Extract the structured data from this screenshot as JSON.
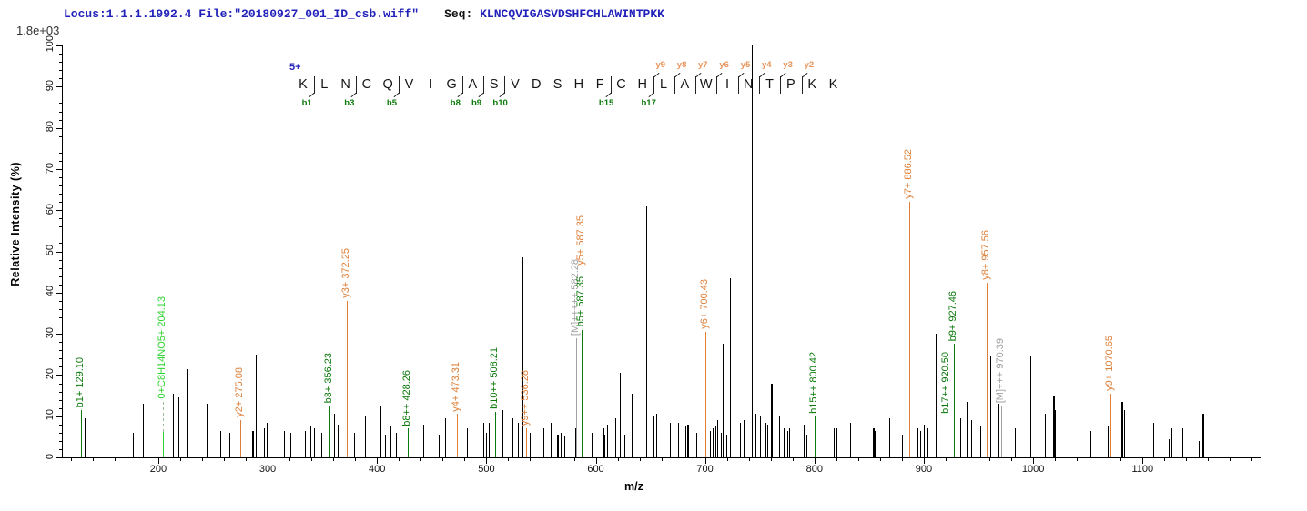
{
  "header": {
    "locus_file": "Locus:1.1.1.1992.4 File:\"20180927_001_ID_csb.wiff\"",
    "seq_label": "Seq:",
    "sequence": "KLNCQVIGASVDSHFCHLAWINTPKK"
  },
  "base_peak_intensity": "1.8e+03",
  "colors": {
    "header_blue": "#2222bb",
    "b_ion_green": "#0a7a0a",
    "y_ion_orange": "#dd7f38",
    "special_green": "#2fd32f",
    "ref_gray": "#a0a0a0",
    "peak_black": "#000000"
  },
  "sequence_overlay": {
    "charge": "5+",
    "residues": [
      "K",
      "L",
      "N",
      "C",
      "Q",
      "V",
      "I",
      "G",
      "A",
      "S",
      "V",
      "D",
      "S",
      "H",
      "F",
      "C",
      "H",
      "L",
      "A",
      "W",
      "I",
      "N",
      "T",
      "P",
      "K",
      "K"
    ],
    "b_ions": [
      {
        "label": "b1",
        "after_index": 0
      },
      {
        "label": "b3",
        "after_index": 2
      },
      {
        "label": "b5",
        "after_index": 4
      },
      {
        "label": "b8",
        "after_index": 7
      },
      {
        "label": "b9",
        "after_index": 8
      },
      {
        "label": "b10",
        "after_index": 9
      },
      {
        "label": "b15",
        "after_index": 14
      },
      {
        "label": "b17",
        "after_index": 16
      }
    ],
    "y_ions": [
      {
        "label": "y9",
        "after_index": 16
      },
      {
        "label": "y8",
        "after_index": 17
      },
      {
        "label": "y7",
        "after_index": 18
      },
      {
        "label": "y6",
        "after_index": 19
      },
      {
        "label": "y5",
        "after_index": 20
      },
      {
        "label": "y4",
        "after_index": 21
      },
      {
        "label": "y3",
        "after_index": 22
      },
      {
        "label": "y2",
        "after_index": 23
      }
    ]
  },
  "axes": {
    "x_label": "m/z",
    "y_label": "Relative  Intensity (%)",
    "x_ticks": [
      200,
      300,
      400,
      500,
      600,
      700,
      800,
      900,
      1000,
      1100
    ],
    "x_minor_step": 20,
    "x_minor_range": [
      120,
      1200
    ],
    "y_ticks": [
      0,
      10,
      20,
      30,
      40,
      50,
      60,
      70,
      80,
      90,
      100
    ],
    "y_minor_step": 2
  },
  "chart_data": {
    "type": "bar",
    "subtype": "centroid-ms2-spectrum",
    "title": "",
    "xlabel": "m/z",
    "ylabel": "Relative Intensity (%)",
    "xlim": [
      107,
      1208
    ],
    "ylim": [
      0,
      100
    ],
    "grid": false,
    "base_peak_mz": 743,
    "base_peak_absolute_intensity": "1.8e+03",
    "peaks": [
      {
        "mz": 129.1,
        "i": 11.5,
        "t": "b",
        "label": "b1+ 129.10"
      },
      {
        "mz": 133,
        "i": 9.5
      },
      {
        "mz": 143,
        "i": 6.5
      },
      {
        "mz": 171,
        "i": 8
      },
      {
        "mz": 177,
        "i": 6
      },
      {
        "mz": 186,
        "i": 13
      },
      {
        "mz": 198,
        "i": 9.5
      },
      {
        "mz": 204.13,
        "i": 13.5,
        "t": "g",
        "label": "0+C8H14NO5+ 204.13"
      },
      {
        "mz": 213,
        "i": 15.5
      },
      {
        "mz": 218,
        "i": 14.5
      },
      {
        "mz": 227,
        "i": 21.5
      },
      {
        "mz": 244,
        "i": 13
      },
      {
        "mz": 257,
        "i": 6.5
      },
      {
        "mz": 265,
        "i": 6
      },
      {
        "mz": 275.08,
        "i": 9,
        "t": "y",
        "label": "y2+ 275.08"
      },
      {
        "mz": 286,
        "i": 6.5,
        "w": 2
      },
      {
        "mz": 289,
        "i": 25
      },
      {
        "mz": 297,
        "i": 7
      },
      {
        "mz": 299,
        "i": 8.5,
        "w": 2
      },
      {
        "mz": 315,
        "i": 6.5
      },
      {
        "mz": 321,
        "i": 6
      },
      {
        "mz": 334,
        "i": 6.5
      },
      {
        "mz": 339,
        "i": 7.5
      },
      {
        "mz": 342,
        "i": 7
      },
      {
        "mz": 349,
        "i": 6
      },
      {
        "mz": 356.23,
        "i": 12.5,
        "t": "b",
        "label": "b3+ 356.23"
      },
      {
        "mz": 361,
        "i": 10.5
      },
      {
        "mz": 364,
        "i": 8
      },
      {
        "mz": 372.25,
        "i": 38,
        "t": "y",
        "label": "y3+ 372.25"
      },
      {
        "mz": 379,
        "i": 6
      },
      {
        "mz": 389,
        "i": 10
      },
      {
        "mz": 403,
        "i": 12.5
      },
      {
        "mz": 407,
        "i": 5.5
      },
      {
        "mz": 412,
        "i": 7.5
      },
      {
        "mz": 417,
        "i": 6
      },
      {
        "mz": 428.26,
        "i": 7,
        "t": "b",
        "label": "b8++ 428.26"
      },
      {
        "mz": 442,
        "i": 8
      },
      {
        "mz": 456,
        "i": 5.5
      },
      {
        "mz": 462,
        "i": 9.5
      },
      {
        "mz": 473.31,
        "i": 10.5,
        "t": "y",
        "label": "y4+ 473.31"
      },
      {
        "mz": 482,
        "i": 7
      },
      {
        "mz": 495,
        "i": 9
      },
      {
        "mz": 497,
        "i": 8.5
      },
      {
        "mz": 500,
        "i": 6
      },
      {
        "mz": 502,
        "i": 8.5
      },
      {
        "mz": 508.21,
        "i": 11,
        "t": "b",
        "label": "b10++ 508.21"
      },
      {
        "mz": 515,
        "i": 11.5
      },
      {
        "mz": 524,
        "i": 9.5
      },
      {
        "mz": 529,
        "i": 8.5
      },
      {
        "mz": 533,
        "i": 48.5
      },
      {
        "mz": 536.28,
        "i": 7,
        "t": "y",
        "label": "y9++ 536.28"
      },
      {
        "mz": 540,
        "i": 6
      },
      {
        "mz": 552,
        "i": 7
      },
      {
        "mz": 559,
        "i": 8.5
      },
      {
        "mz": 565,
        "i": 5.5,
        "w": 2
      },
      {
        "mz": 568,
        "i": 6,
        "w": 2
      },
      {
        "mz": 571,
        "i": 5
      },
      {
        "mz": 578,
        "i": 8.5
      },
      {
        "mz": 581,
        "i": 7
      },
      {
        "mz": 582.28,
        "i": 29,
        "t": "m",
        "label": "[M]+++++ 582.28"
      },
      {
        "mz": 587.35,
        "i": 31,
        "t": "b",
        "label": "b5+ 587.35",
        "label2": "y5+ 587.35"
      },
      {
        "mz": 596,
        "i": 6
      },
      {
        "mz": 606,
        "i": 7,
        "w": 2
      },
      {
        "mz": 608,
        "i": 5.5
      },
      {
        "mz": 610,
        "i": 8
      },
      {
        "mz": 618,
        "i": 9.5
      },
      {
        "mz": 622,
        "i": 20.5
      },
      {
        "mz": 626,
        "i": 5.5
      },
      {
        "mz": 633,
        "i": 15.5
      },
      {
        "mz": 646,
        "i": 61
      },
      {
        "mz": 653,
        "i": 10
      },
      {
        "mz": 655,
        "i": 10.5
      },
      {
        "mz": 668,
        "i": 8.5
      },
      {
        "mz": 675,
        "i": 8.5
      },
      {
        "mz": 680,
        "i": 8
      },
      {
        "mz": 682,
        "i": 7.5
      },
      {
        "mz": 684,
        "i": 8,
        "w": 2
      },
      {
        "mz": 692,
        "i": 6
      },
      {
        "mz": 700.43,
        "i": 30.5,
        "t": "y",
        "label": "y6+ 700.43"
      },
      {
        "mz": 704,
        "i": 6.5
      },
      {
        "mz": 707,
        "i": 7
      },
      {
        "mz": 709,
        "i": 7.5
      },
      {
        "mz": 711,
        "i": 9
      },
      {
        "mz": 714,
        "i": 6
      },
      {
        "mz": 716,
        "i": 27.5
      },
      {
        "mz": 719,
        "i": 5.5
      },
      {
        "mz": 722.5,
        "i": 43.5
      },
      {
        "mz": 727,
        "i": 25.5
      },
      {
        "mz": 732,
        "i": 8.5
      },
      {
        "mz": 735,
        "i": 9
      },
      {
        "mz": 743,
        "i": 100
      },
      {
        "mz": 746,
        "i": 10.5
      },
      {
        "mz": 750,
        "i": 10
      },
      {
        "mz": 754,
        "i": 8.5,
        "w": 2
      },
      {
        "mz": 757,
        "i": 8
      },
      {
        "mz": 760,
        "i": 18,
        "w": 2
      },
      {
        "mz": 768,
        "i": 10
      },
      {
        "mz": 772,
        "i": 7
      },
      {
        "mz": 775,
        "i": 6.5
      },
      {
        "mz": 777,
        "i": 7
      },
      {
        "mz": 782,
        "i": 9
      },
      {
        "mz": 790,
        "i": 8
      },
      {
        "mz": 793,
        "i": 5.5
      },
      {
        "mz": 800.42,
        "i": 10,
        "t": "b",
        "label": "b15++ 800.42"
      },
      {
        "mz": 818,
        "i": 7
      },
      {
        "mz": 820,
        "i": 7
      },
      {
        "mz": 833,
        "i": 8.5
      },
      {
        "mz": 847,
        "i": 11
      },
      {
        "mz": 853,
        "i": 7,
        "w": 2
      },
      {
        "mz": 855,
        "i": 6.5
      },
      {
        "mz": 868,
        "i": 9.5
      },
      {
        "mz": 880,
        "i": 5.5
      },
      {
        "mz": 886.52,
        "i": 62,
        "t": "y",
        "label": "y7+ 886.52"
      },
      {
        "mz": 894,
        "i": 7
      },
      {
        "mz": 897,
        "i": 6.5
      },
      {
        "mz": 900,
        "i": 8
      },
      {
        "mz": 903,
        "i": 7
      },
      {
        "mz": 911,
        "i": 30
      },
      {
        "mz": 920.5,
        "i": 10,
        "t": "b",
        "label": "b17++ 920.50"
      },
      {
        "mz": 927.46,
        "i": 27.5,
        "t": "b",
        "label": "b9+ 927.46"
      },
      {
        "mz": 933,
        "i": 9.5
      },
      {
        "mz": 939,
        "i": 13.5
      },
      {
        "mz": 943,
        "i": 9
      },
      {
        "mz": 952,
        "i": 7.5
      },
      {
        "mz": 957.56,
        "i": 42.5,
        "t": "y",
        "label": "y8+ 957.56"
      },
      {
        "mz": 961,
        "i": 24.5
      },
      {
        "mz": 968.5,
        "i": 13
      },
      {
        "mz": 970.39,
        "i": 12.5,
        "t": "m",
        "label": "[M]+++ 970.39"
      },
      {
        "mz": 983,
        "i": 7
      },
      {
        "mz": 997,
        "i": 24.5
      },
      {
        "mz": 1011,
        "i": 10.5
      },
      {
        "mz": 1018,
        "i": 15,
        "w": 2
      },
      {
        "mz": 1020,
        "i": 11.5
      },
      {
        "mz": 1052,
        "i": 6.5
      },
      {
        "mz": 1068,
        "i": 7.5
      },
      {
        "mz": 1070.65,
        "i": 15.5,
        "t": "y",
        "label": "y9+ 1070.65"
      },
      {
        "mz": 1081,
        "i": 13.5,
        "w": 2
      },
      {
        "mz": 1083,
        "i": 11.5
      },
      {
        "mz": 1097,
        "i": 18
      },
      {
        "mz": 1110,
        "i": 8.5
      },
      {
        "mz": 1124,
        "i": 4.5
      },
      {
        "mz": 1126,
        "i": 7
      },
      {
        "mz": 1136,
        "i": 7
      },
      {
        "mz": 1151,
        "i": 4
      },
      {
        "mz": 1153,
        "i": 17
      },
      {
        "mz": 1155,
        "i": 10.5,
        "w": 2
      }
    ]
  }
}
